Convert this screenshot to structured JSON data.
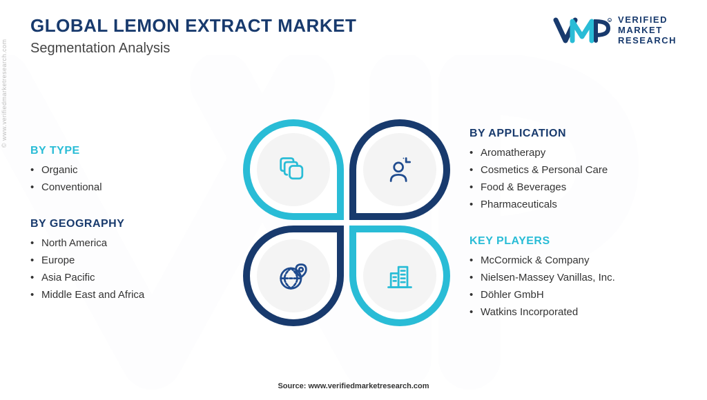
{
  "colors": {
    "teal": "#29bcd6",
    "navy": "#183a6d",
    "iconTeal": "#29bcd6",
    "iconNavy": "#1f4b8e",
    "bgGrey": "#f4f4f4",
    "text": "#333333"
  },
  "header": {
    "title": "GLOBAL LEMON EXTRACT MARKET",
    "subtitle": "Segmentation Analysis",
    "logoTop": "VERIFIED",
    "logoMid": "MARKET",
    "logoBot": "RESEARCH"
  },
  "sideWatermark": "© www.verifiedmarketresearch.com",
  "segments": {
    "type": {
      "title": "BY TYPE",
      "items": [
        "Organic",
        "Conventional"
      ],
      "titleColor": "#29bcd6",
      "petalColor": "#29bcd6",
      "iconColor": "#29bcd6"
    },
    "application": {
      "title": "BY APPLICATION",
      "items": [
        "Aromatherapy",
        "Cosmetics & Personal Care",
        "Food & Beverages",
        "Pharmaceuticals"
      ],
      "titleColor": "#183a6d",
      "petalColor": "#183a6d",
      "iconColor": "#1f4b8e"
    },
    "geography": {
      "title": "BY GEOGRAPHY",
      "items": [
        "North America",
        "Europe",
        "Asia Pacific",
        "Middle East and Africa"
      ],
      "titleColor": "#183a6d",
      "petalColor": "#183a6d",
      "iconColor": "#1f4b8e"
    },
    "keyplayers": {
      "title": "KEY PLAYERS",
      "items": [
        "McCormick & Company",
        "Nielsen-Massey Vanillas, Inc.",
        "Döhler GmbH",
        "Watkins Incorporated"
      ],
      "titleColor": "#29bcd6",
      "petalColor": "#29bcd6",
      "iconColor": "#29bcd6"
    }
  },
  "footer": "Source: www.verifiedmarketresearch.com",
  "diagram": {
    "petalSize": 146,
    "innerSize": 106,
    "ringInset": 10,
    "gap": 8
  }
}
